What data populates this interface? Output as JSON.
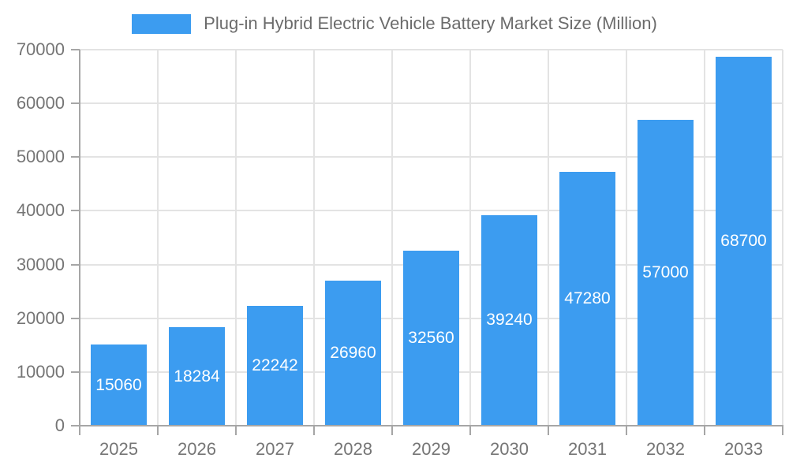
{
  "chart_data": {
    "type": "bar",
    "title": "Plug-in Hybrid Electric Vehicle Battery Market Size (Million)",
    "categories": [
      "2025",
      "2026",
      "2027",
      "2028",
      "2029",
      "2030",
      "2031",
      "2032",
      "2033"
    ],
    "series": [
      {
        "name": "Plug-in Hybrid Electric Vehicle Battery Market Size (Million)",
        "values": [
          15060,
          18284,
          22242,
          26960,
          32560,
          39240,
          47280,
          57000,
          68700
        ]
      }
    ],
    "xlabel": "",
    "ylabel": "",
    "ylim": [
      0,
      70000
    ],
    "y_ticks": [
      0,
      10000,
      20000,
      30000,
      40000,
      50000,
      60000,
      70000
    ],
    "grid": true,
    "legend_position": "top",
    "bar_value_labels_shown": true,
    "colors": {
      "bar": "#3C9CF0",
      "axis_line": "#a6a6a6",
      "grid_line": "#e3e3e3",
      "tick_text": "#757575",
      "legend_text": "#6b6b6b",
      "bar_label_text": "#ffffff"
    }
  }
}
